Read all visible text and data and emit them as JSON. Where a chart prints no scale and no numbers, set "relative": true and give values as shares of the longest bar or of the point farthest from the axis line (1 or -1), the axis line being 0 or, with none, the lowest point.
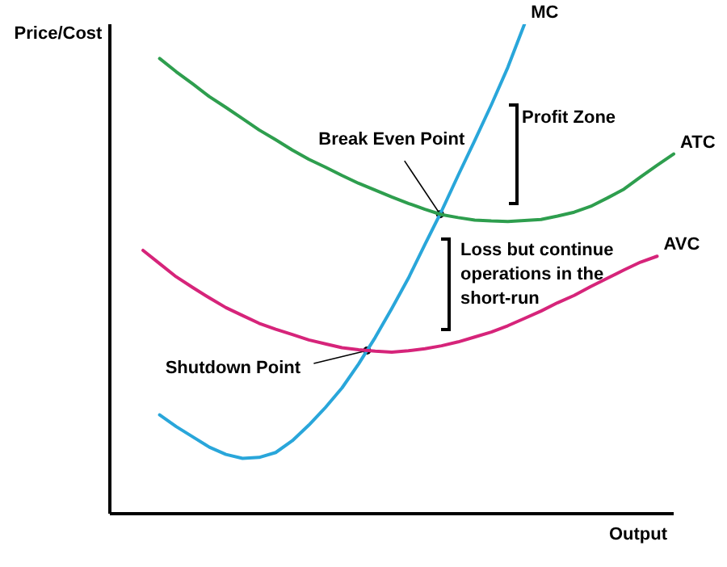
{
  "chart_data": {
    "type": "line",
    "relative": true,
    "xlabel": "Output",
    "ylabel": "Price/Cost",
    "marker": "none",
    "line_style": "solid",
    "grid": false,
    "legend": false,
    "categories": [
      null,
      null,
      null,
      null,
      null,
      null,
      null,
      null,
      null,
      null,
      null,
      null,
      null,
      null,
      null,
      null,
      null,
      null,
      null,
      null,
      null,
      null,
      null,
      null,
      null,
      null,
      null,
      null,
      null,
      null,
      null,
      null,
      null,
      null,
      null
    ],
    "series": [
      {
        "name": "MC",
        "color": "#29a6da",
        "values": [
          null,
          null,
          null,
          0.202,
          0.178,
          0.157,
          0.136,
          0.121,
          0.113,
          0.115,
          0.125,
          0.149,
          0.181,
          0.217,
          0.257,
          0.306,
          0.36,
          0.419,
          0.481,
          0.55,
          0.618,
          0.691,
          0.762,
          0.835,
          0.912,
          1,
          null,
          null,
          null,
          null,
          null,
          null,
          null,
          null,
          null
        ]
      },
      {
        "name": "ATC",
        "color": "#2e9e4e",
        "values": [
          null,
          null,
          null,
          0.93,
          0.903,
          0.878,
          0.852,
          0.83,
          0.807,
          0.784,
          0.764,
          0.743,
          0.724,
          0.708,
          0.691,
          0.675,
          0.661,
          0.647,
          0.634,
          0.622,
          0.611,
          0.605,
          0.6,
          0.598,
          0.597,
          0.599,
          0.601,
          0.608,
          0.616,
          0.628,
          0.645,
          0.663,
          0.688,
          0.712,
          0.735
        ]
      },
      {
        "name": "AVC",
        "color": "#d6247a",
        "values": [
          null,
          null,
          0.538,
          0.511,
          0.484,
          0.462,
          0.441,
          0.421,
          0.405,
          0.389,
          0.377,
          0.366,
          0.355,
          0.347,
          0.339,
          0.335,
          0.332,
          0.33,
          0.333,
          0.337,
          0.343,
          0.351,
          0.361,
          0.371,
          0.384,
          0.399,
          0.414,
          0.431,
          0.446,
          0.464,
          0.481,
          0.498,
          0.514,
          0.526,
          null
        ]
      }
    ],
    "annotations": [
      "Break Even Point",
      "Shutdown Point",
      "Profit Zone",
      "Loss but continue operations in the short-run"
    ]
  }
}
